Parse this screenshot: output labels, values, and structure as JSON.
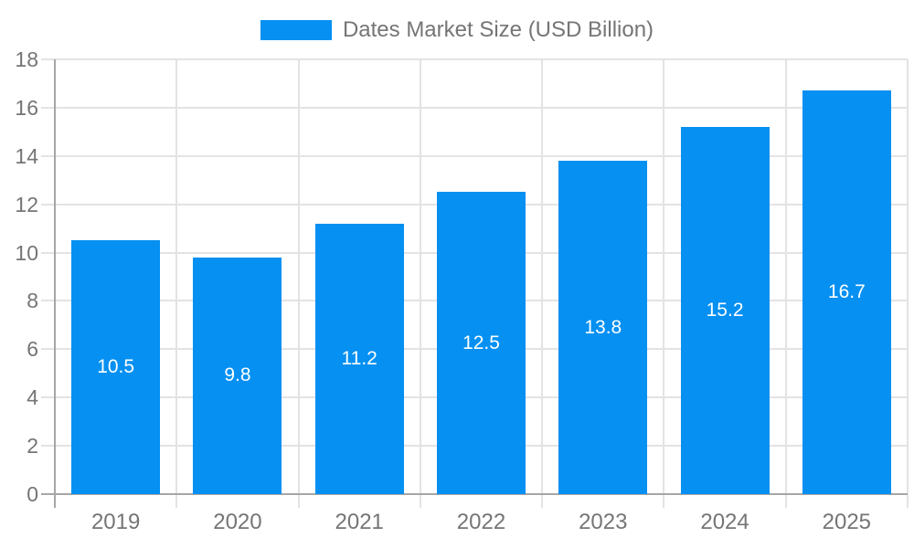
{
  "legend": {
    "label": "Dates Market Size (USD Billion)"
  },
  "chart_data": {
    "type": "bar",
    "title": "Dates Market Size (USD Billion)",
    "categories": [
      "2019",
      "2020",
      "2021",
      "2022",
      "2023",
      "2024",
      "2025"
    ],
    "values": [
      10.5,
      9.8,
      11.2,
      12.5,
      13.8,
      15.2,
      16.7
    ],
    "value_labels": [
      "10.5",
      "9.8",
      "11.2",
      "12.5",
      "13.8",
      "15.2",
      "16.7"
    ],
    "xlabel": "",
    "ylabel": "",
    "ylim": [
      0,
      18
    ],
    "ytick_step": 2,
    "ytick_labels": [
      "0",
      "2",
      "4",
      "6",
      "8",
      "10",
      "12",
      "14",
      "16",
      "18"
    ],
    "grid": "on",
    "legend_position": "top",
    "colors": {
      "bar": "#0590f2",
      "bar_value_text": "#ffffff",
      "gridline": "#e3e3e3",
      "axis_line": "#a6a6a6",
      "tick_text": "#757575",
      "legend_text": "#757575",
      "background": "#ffffff"
    }
  }
}
